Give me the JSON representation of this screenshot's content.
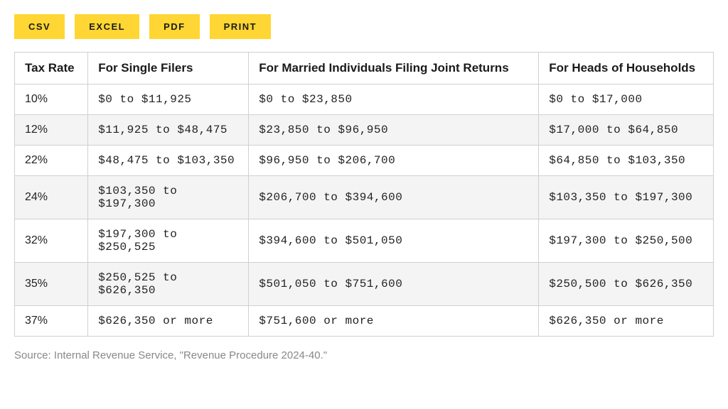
{
  "export_buttons": {
    "csv": "CSV",
    "excel": "EXCEL",
    "pdf": "PDF",
    "print": "PRINT"
  },
  "table": {
    "columns": {
      "rate": "Tax Rate",
      "single": "For Single Filers",
      "married": "For Married Individuals Filing Joint Returns",
      "hoh": "For Heads of Households"
    },
    "rows": [
      {
        "rate": "10%",
        "single": "$0 to $11,925",
        "married": "$0 to $23,850",
        "hoh": "$0 to $17,000"
      },
      {
        "rate": "12%",
        "single": "$11,925 to $48,475",
        "married": "$23,850 to $96,950",
        "hoh": "$17,000 to $64,850"
      },
      {
        "rate": "22%",
        "single": "$48,475 to $103,350",
        "married": "$96,950 to $206,700",
        "hoh": "$64,850 to $103,350"
      },
      {
        "rate": "24%",
        "single": "$103,350 to $197,300",
        "married": "$206,700 to $394,600",
        "hoh": "$103,350 to $197,300"
      },
      {
        "rate": "32%",
        "single": "$197,300 to $250,525",
        "married": "$394,600 to $501,050",
        "hoh": "$197,300 to $250,500"
      },
      {
        "rate": "35%",
        "single": "$250,525 to $626,350",
        "married": "$501,050 to $751,600",
        "hoh": "$250,500 to $626,350"
      },
      {
        "rate": "37%",
        "single": "$626,350 or more",
        "married": "$751,600 or more",
        "hoh": "$626,350 or more"
      }
    ]
  },
  "source_text": "Source: Internal Revenue Service, \"Revenue Procedure 2024-40.\"",
  "colors": {
    "button_bg": "#ffd633",
    "border": "#d0d0d0",
    "row_alt_bg": "#f4f4f4",
    "text": "#1a1a1a",
    "source_text": "#888888"
  }
}
